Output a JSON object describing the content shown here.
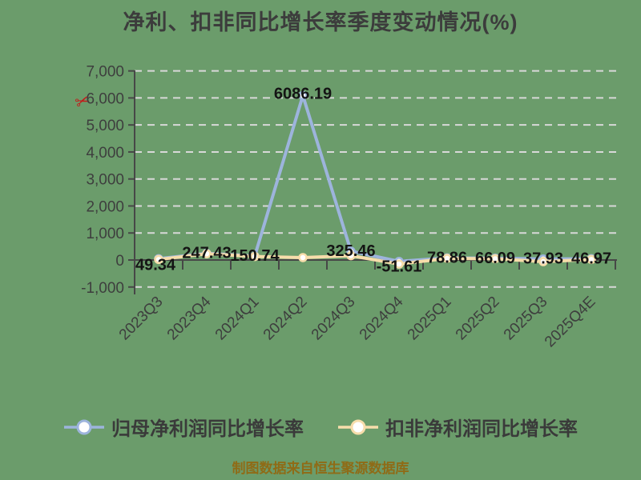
{
  "title": "净利、扣非同比增长率季度变动情况(%)",
  "caption": "制图数据来自恒生聚源数据库",
  "icons": {
    "axis_break_glyph": "✂"
  },
  "colors": {
    "background": "#6b9c6b",
    "grid": "#d8d8d8",
    "axis": "#474747",
    "net_profit_line": "#9db4dc",
    "deducted_profit_line": "#f7ddab",
    "marker_fill": "#ffffff",
    "data_label": "#141414",
    "tick_text": "#3e3e3e",
    "caption_text": "#8f6b16",
    "axis_break_icon": "#c41a1a"
  },
  "legend": {
    "items": [
      {
        "label": "归母净利润同比增长率",
        "color": "#9db4dc"
      },
      {
        "label": "扣非净利润同比增长率",
        "color": "#f7ddab"
      }
    ]
  },
  "chart_data": {
    "type": "line",
    "title": "净利、扣非同比增长率季度变动情况(%)",
    "categories": [
      "2023Q3",
      "2023Q4",
      "2024Q1",
      "2024Q2",
      "2024Q3",
      "2024Q4",
      "2025Q1",
      "2025Q2",
      "2025Q3",
      "2025Q4E"
    ],
    "series": [
      {
        "name": "归母净利润同比增长率",
        "color": "#9db4dc",
        "values": [
          49.34,
          247.43,
          150.74,
          6086.19,
          325.46,
          -51.61,
          78.86,
          66.09,
          37.93,
          46.97
        ],
        "labels": [
          "49.34",
          "247.43",
          "150.74",
          "6086.19",
          "325.46",
          "-51.61",
          "78.86",
          "66.09",
          "37.93",
          "46.97"
        ]
      },
      {
        "name": "扣非净利润同比增长率",
        "color": "#f7ddab",
        "values": [
          20,
          230,
          130,
          90,
          160,
          -150,
          60,
          45,
          -60,
          20
        ]
      }
    ],
    "ylim": [
      -1000,
      7000
    ],
    "y_ticks": [
      {
        "value": 7000,
        "label": "7,000"
      },
      {
        "value": 6000,
        "label": "6,000"
      },
      {
        "value": 5000,
        "label": "5,000"
      },
      {
        "value": 4000,
        "label": "4,000"
      },
      {
        "value": 3000,
        "label": "3,000"
      },
      {
        "value": 2000,
        "label": "2,000"
      },
      {
        "value": 1000,
        "label": "1,000"
      },
      {
        "value": 0,
        "label": "0"
      },
      {
        "value": -1000,
        "label": "-1,000"
      }
    ],
    "grid": "horizontal-dashed",
    "x_axis_on_zero": true,
    "legend_position": "bottom"
  }
}
